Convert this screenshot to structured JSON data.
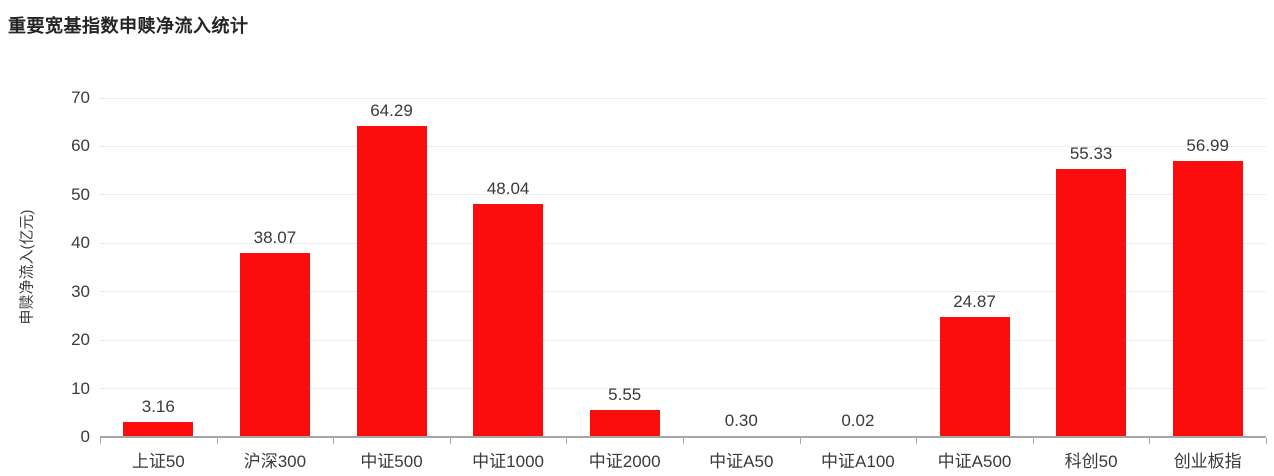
{
  "title": "重要宽基指数申赎净流入统计",
  "chart_data": {
    "type": "bar",
    "title": "重要宽基指数申赎净流入统计",
    "categories": [
      "上证50",
      "沪深300",
      "中证500",
      "中证1000",
      "中证2000",
      "中证A50",
      "中证A100",
      "中证A500",
      "科创50",
      "创业板指"
    ],
    "values": [
      3.16,
      38.07,
      64.29,
      48.04,
      5.55,
      0.3,
      0.02,
      24.87,
      55.33,
      56.99
    ],
    "value_labels": [
      "3.16",
      "38.07",
      "64.29",
      "48.04",
      "5.55",
      "0.30",
      "0.02",
      "24.87",
      "55.33",
      "56.99"
    ],
    "xlabel": "",
    "ylabel": "申赎净流入(亿元)",
    "ylim": [
      0,
      70
    ],
    "yticks": [
      0,
      10,
      20,
      30,
      40,
      50,
      60,
      70
    ],
    "grid": "horizontal-dotted",
    "legend": "none",
    "bar_color": "#fb0d0d",
    "label_color": "#3a3a3a",
    "axis_color": "#a6a6a6",
    "grid_color": "#d9dce8"
  }
}
